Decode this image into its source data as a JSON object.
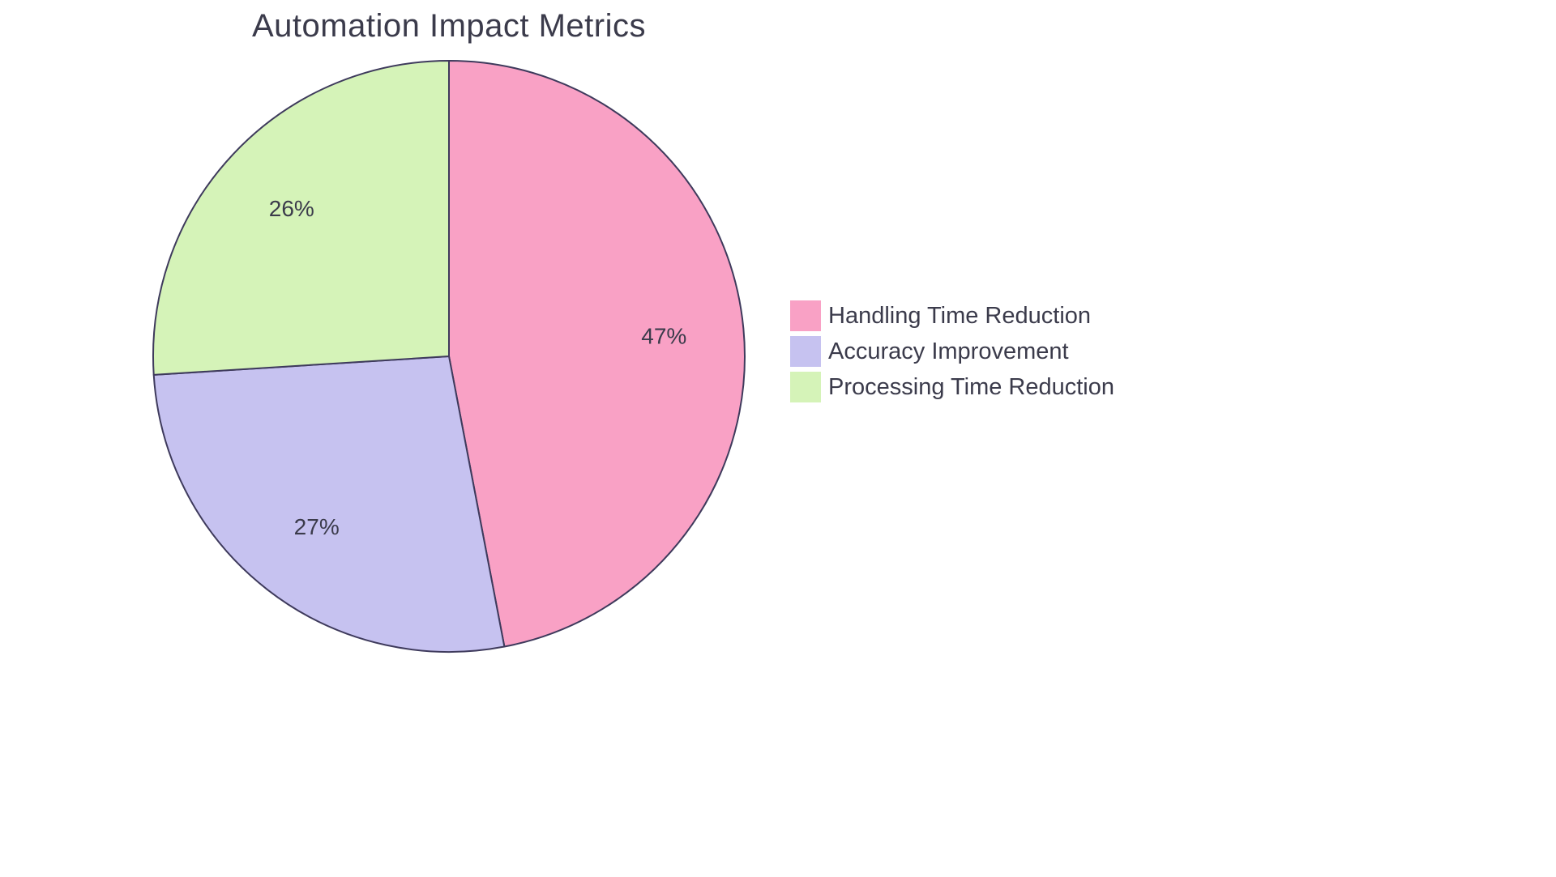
{
  "chart_data": {
    "type": "pie",
    "title": "Automation Impact Metrics",
    "labels": [
      "Handling Time Reduction",
      "Accuracy Improvement",
      "Processing Time Reduction"
    ],
    "values": [
      47,
      27,
      26
    ],
    "percent_labels": [
      "47%",
      "27%",
      "26%"
    ],
    "colors": [
      "#F9A1C5",
      "#C6C2F0",
      "#D5F3B8"
    ],
    "stroke_color": "#3E3A5C",
    "text_color": "#3B3B4B",
    "legend_position": "right",
    "start_angle_deg": 0,
    "direction": "clockwise"
  }
}
